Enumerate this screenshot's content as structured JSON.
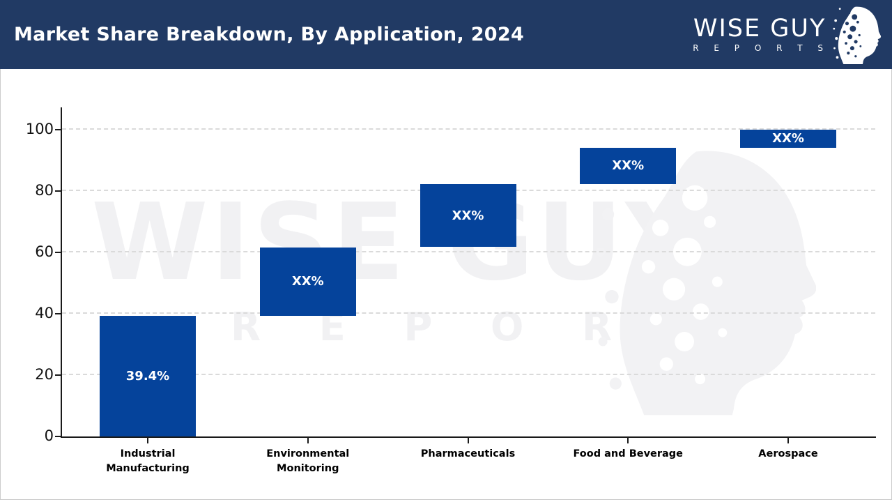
{
  "header": {
    "title": "Market Share Breakdown, By Application, 2024",
    "bg_color": "#213a64",
    "logo": {
      "line1": "WISE GUY",
      "line2": "R E P O R T S"
    }
  },
  "watermark": {
    "line1": "WISE GUY",
    "line2": "R E P O R T S"
  },
  "chart_data": {
    "type": "bar",
    "subtype": "waterfall",
    "title": "Market Share Breakdown, By Application, 2024",
    "xlabel": "",
    "ylabel": "",
    "categories": [
      [
        "Industrial",
        "Manufacturing"
      ],
      [
        "Environmental",
        "Monitoring"
      ],
      [
        "Pharmaceuticals"
      ],
      [
        "Food and Beverage"
      ],
      [
        "Aerospace"
      ]
    ],
    "series": [
      {
        "name": "Market Share (%)",
        "segments": [
          {
            "start": 0,
            "end": 39.4
          },
          {
            "start": 39.4,
            "end": 61.5
          },
          {
            "start": 61.7,
            "end": 82.3
          },
          {
            "start": 82.3,
            "end": 94.1
          },
          {
            "start": 94.1,
            "end": 100
          }
        ]
      }
    ],
    "bar_labels": [
      "39.4%",
      "XX%",
      "XX%",
      "XX%",
      "XX%"
    ],
    "yticks": [
      0,
      20,
      40,
      60,
      80,
      100
    ],
    "ylim": [
      0,
      103.6
    ],
    "grid": "horizontal-dashed",
    "legend": "none",
    "bar_color": "#05439b",
    "bar_label_color": "#ffffff",
    "axis_color": "#1a1a1a",
    "grid_color": "#dadada"
  }
}
